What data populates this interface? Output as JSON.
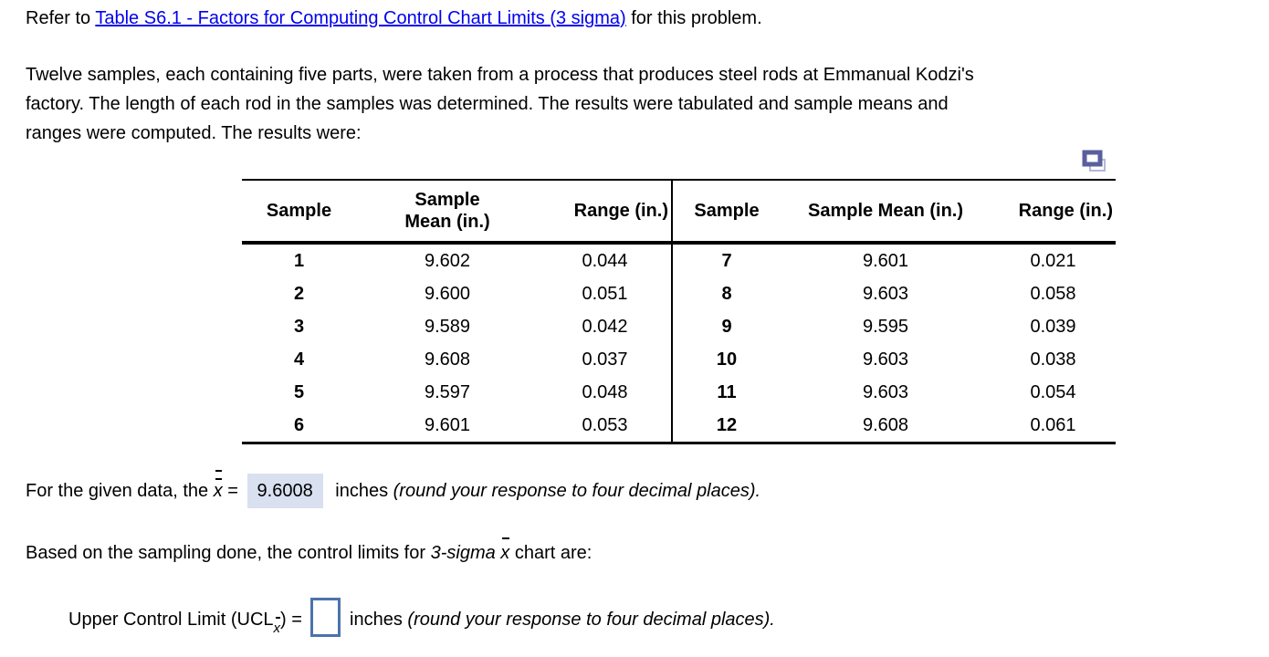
{
  "intro": {
    "prefix": "Refer to",
    "link_text": "Table S6.1 - Factors for Computing Control Chart Limits (3 sigma)",
    "suffix": "for this problem."
  },
  "problem": {
    "lines": [
      "Twelve samples, each containing five parts, were taken from a process that produces steel rods at Emmanual Kodzi's",
      "factory. The length of each rod in the samples was determined. The results were tabulated and sample means and",
      "ranges were computed. The results were:"
    ]
  },
  "icons": {
    "table_popout": "duplicate-window-icon"
  },
  "table": {
    "headers": [
      "Sample",
      "Sample Mean (in.)",
      "Range (in.)",
      "Sample",
      "Sample Mean (in.)",
      "Range (in.)"
    ],
    "rows": [
      [
        "1",
        "9.602",
        "0.044",
        "7",
        "9.601",
        "0.021"
      ],
      [
        "2",
        "9.600",
        "0.051",
        "8",
        "9.603",
        "0.058"
      ],
      [
        "3",
        "9.589",
        "0.042",
        "9",
        "9.595",
        "0.039"
      ],
      [
        "4",
        "9.608",
        "0.037",
        "10",
        "9.603",
        "0.038"
      ],
      [
        "5",
        "9.597",
        "0.048",
        "11",
        "9.603",
        "0.054"
      ],
      [
        "6",
        "9.601",
        "0.053",
        "12",
        "9.608",
        "0.061"
      ]
    ]
  },
  "answer_line": {
    "prefix": "For the given data, the",
    "x_symbol": "x",
    "equals": "=",
    "value": "9.6008",
    "unit": "inches",
    "note": "(round your response to four decimal places)."
  },
  "based_line": {
    "prefix": "Based on the sampling done, the control limits for",
    "italic_term": "3-sigma",
    "x_symbol": "x",
    "suffix": "chart are:"
  },
  "ucl_line": {
    "label_prefix": "Upper Control Limit (UCL",
    "sub_x": "x",
    "label_suffix": ") =",
    "input_value": "",
    "unit": "inches",
    "note": "(round your response to four decimal places)."
  },
  "colors": {
    "link": "#0000ee",
    "answer_highlight": "#d9e0f0",
    "input_border": "#4a73ad",
    "icon_dark": "#5a5f9e",
    "icon_light": "#b4b8d6",
    "table_border": "#000000",
    "text": "#000000"
  }
}
